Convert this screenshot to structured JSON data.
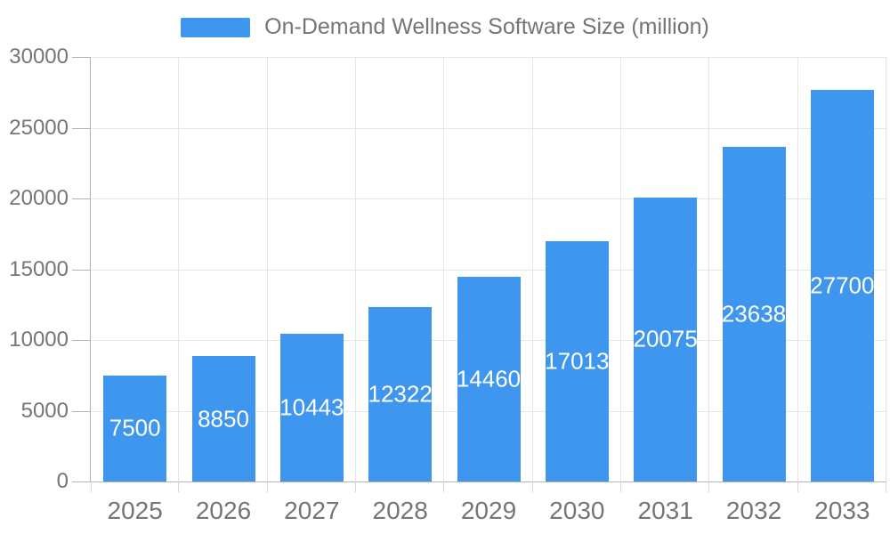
{
  "chart_data": {
    "type": "bar",
    "title": "On-Demand Wellness Software Size (million)",
    "series_name": "On-Demand Wellness Software Size (million)",
    "categories": [
      "2025",
      "2026",
      "2027",
      "2028",
      "2029",
      "2030",
      "2031",
      "2032",
      "2033"
    ],
    "values": [
      7500,
      8850,
      10443,
      12322,
      14460,
      17013,
      20075,
      23638,
      27700
    ],
    "xlabel": "",
    "ylabel": "",
    "ylim": [
      0,
      30000
    ],
    "yticks": [
      0,
      5000,
      10000,
      15000,
      20000,
      25000,
      30000
    ],
    "grid": true,
    "legend_position": "top-center",
    "bar_color": "#3E96EE",
    "value_label_color": "#ffffff",
    "axis_text_color": "#757575"
  }
}
